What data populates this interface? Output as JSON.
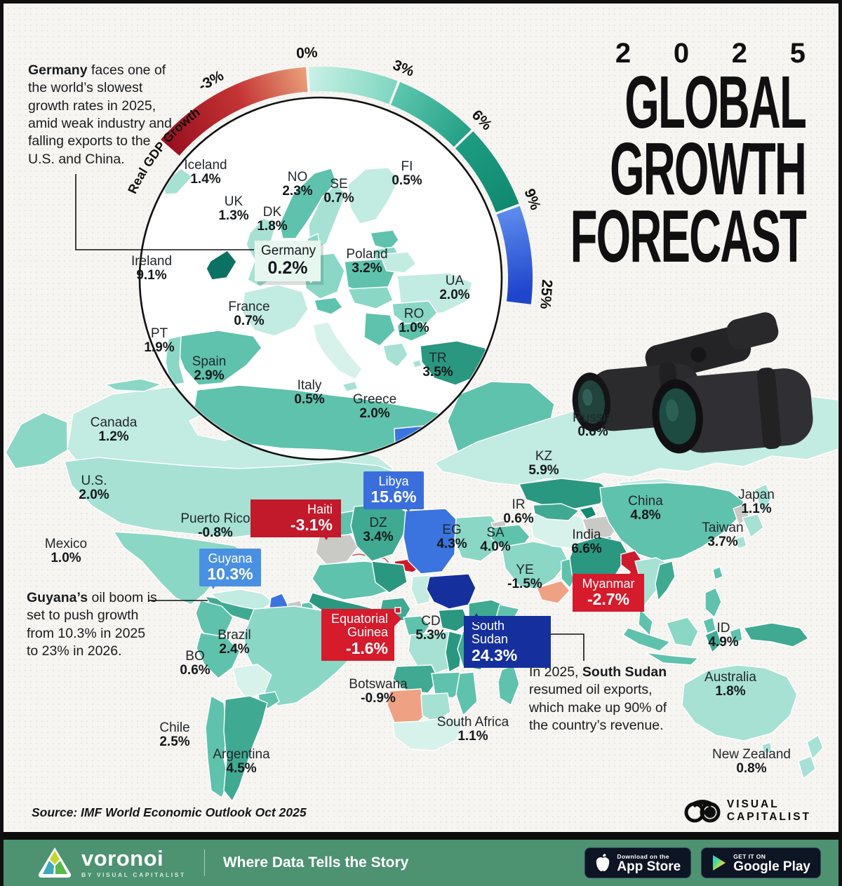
{
  "title": {
    "year": "2 0 2 5",
    "line1": "GLOBAL",
    "line2": "GROWTH",
    "line3": "FORECAST"
  },
  "scale": {
    "label": "Real GDP Growth",
    "ticks": [
      "-3%",
      "0%",
      "3%",
      "6%",
      "9%",
      "25%"
    ]
  },
  "annotations": {
    "germany": {
      "bold": "Germany",
      "text": " faces one of the world’s slowest growth rates in 2025, amid weak industry and falling exports to the U.S. and China."
    },
    "guyana": {
      "bold": "Guyana’s",
      "text": " oil boom is set to push growth from 10.3% in 2025 to 23% in 2026."
    },
    "south_sudan": {
      "pre": "In 2025, ",
      "bold": "South Sudan",
      "text": " resumed oil exports, which make up 90% of the country’s revenue."
    }
  },
  "labels": [
    {
      "id": "iceland",
      "name": "Iceland",
      "value": "1.4%"
    },
    {
      "id": "uk",
      "name": "UK",
      "value": "1.3%"
    },
    {
      "id": "no",
      "name": "NO",
      "value": "2.3%"
    },
    {
      "id": "se",
      "name": "SE",
      "value": "0.7%"
    },
    {
      "id": "fi",
      "name": "FI",
      "value": "0.5%"
    },
    {
      "id": "dk",
      "name": "DK",
      "value": "1.8%"
    },
    {
      "id": "ireland",
      "name": "Ireland",
      "value": "9.1%"
    },
    {
      "id": "poland",
      "name": "Poland",
      "value": "3.2%"
    },
    {
      "id": "ua",
      "name": "UA",
      "value": "2.0%"
    },
    {
      "id": "france",
      "name": "France",
      "value": "0.7%"
    },
    {
      "id": "ro",
      "name": "RO",
      "value": "1.0%"
    },
    {
      "id": "pt",
      "name": "PT",
      "value": "1.9%"
    },
    {
      "id": "spain",
      "name": "Spain",
      "value": "2.9%"
    },
    {
      "id": "italy",
      "name": "Italy",
      "value": "0.5%"
    },
    {
      "id": "greece",
      "name": "Greece",
      "value": "2.0%"
    },
    {
      "id": "tr",
      "name": "TR",
      "value": "3.5%"
    },
    {
      "id": "canada",
      "name": "Canada",
      "value": "1.2%"
    },
    {
      "id": "us",
      "name": "U.S.",
      "value": "2.0%"
    },
    {
      "id": "puerto_rico",
      "name": "Puerto Rico",
      "value": "-0.8%"
    },
    {
      "id": "mexico",
      "name": "Mexico",
      "value": "1.0%"
    },
    {
      "id": "brazil",
      "name": "Brazil",
      "value": "2.4%"
    },
    {
      "id": "bo",
      "name": "BO",
      "value": "0.6%"
    },
    {
      "id": "chile",
      "name": "Chile",
      "value": "2.5%"
    },
    {
      "id": "argentina",
      "name": "Argentina",
      "value": "4.5%"
    },
    {
      "id": "russia",
      "name": "Russia",
      "value": "0.6%"
    },
    {
      "id": "kz",
      "name": "KZ",
      "value": "5.9%"
    },
    {
      "id": "ir",
      "name": "IR",
      "value": "0.6%"
    },
    {
      "id": "china",
      "name": "China",
      "value": "4.8%"
    },
    {
      "id": "india",
      "name": "India",
      "value": "6.6%"
    },
    {
      "id": "japan",
      "name": "Japan",
      "value": "1.1%"
    },
    {
      "id": "taiwan",
      "name": "Taiwan",
      "value": "3.7%"
    },
    {
      "id": "id",
      "name": "ID",
      "value": "4.9%"
    },
    {
      "id": "australia",
      "name": "Australia",
      "value": "1.8%"
    },
    {
      "id": "new_zealand",
      "name": "New Zealand",
      "value": "0.8%"
    },
    {
      "id": "dz",
      "name": "DZ",
      "value": "3.4%"
    },
    {
      "id": "eg",
      "name": "EG",
      "value": "4.3%"
    },
    {
      "id": "sa",
      "name": "SA",
      "value": "4.0%"
    },
    {
      "id": "ye",
      "name": "YE",
      "value": "-1.5%"
    },
    {
      "id": "cd",
      "name": "CD",
      "value": "5.3%"
    },
    {
      "id": "botswana",
      "name": "Botswana",
      "value": "-0.9%"
    },
    {
      "id": "south_africa",
      "name": "South Africa",
      "value": "1.1%"
    }
  ],
  "callouts": [
    {
      "id": "haiti",
      "name": "Haiti",
      "value": "-3.1%"
    },
    {
      "id": "guyana",
      "name": "Guyana",
      "value": "10.3%"
    },
    {
      "id": "libya",
      "name": "Libya",
      "value": "15.6%"
    },
    {
      "id": "eq",
      "name": "Equatorial Guinea",
      "value": "-1.6%"
    },
    {
      "id": "ssudan",
      "name": "South Sudan",
      "value": "24.3%"
    },
    {
      "id": "myanmar",
      "name": "Myanmar",
      "value": "-2.7%"
    },
    {
      "id": "germany",
      "name": "Germany",
      "value": "0.2%"
    }
  ],
  "source": "Source: IMF World Economic Outlook Oct 2025",
  "vc_logo": {
    "line1": "VISUAL",
    "line2": "CAPITALIST"
  },
  "footer": {
    "brand": "voronoi",
    "brand_sub": "BY VISUAL CAPITALIST",
    "tagline": "Where Data Tells the Story",
    "appstore_pre": "Download on the",
    "appstore": "App Store",
    "gplay_pre": "GET IT ON",
    "gplay": "Google Play"
  },
  "colors": {
    "palette": {
      "c0": "#d7f2ea",
      "c1": "#c2ebe2",
      "c2": "#a6e1d4",
      "c3": "#8ad7c6",
      "c4": "#5fc2ac",
      "c5": "#3faa91",
      "c6": "#2a9780",
      "c7": "#128a72",
      "ire": "#0b7263",
      "blue": "#3b74de",
      "navy": "#15309c",
      "red": "#cd1a2b",
      "salmon": "#efa183",
      "gray": "#c9c9c6",
      "pale": "#eef9f5"
    },
    "footer_green": "#4d9271",
    "title_black": "#101010",
    "sea": "#ffffff"
  }
}
